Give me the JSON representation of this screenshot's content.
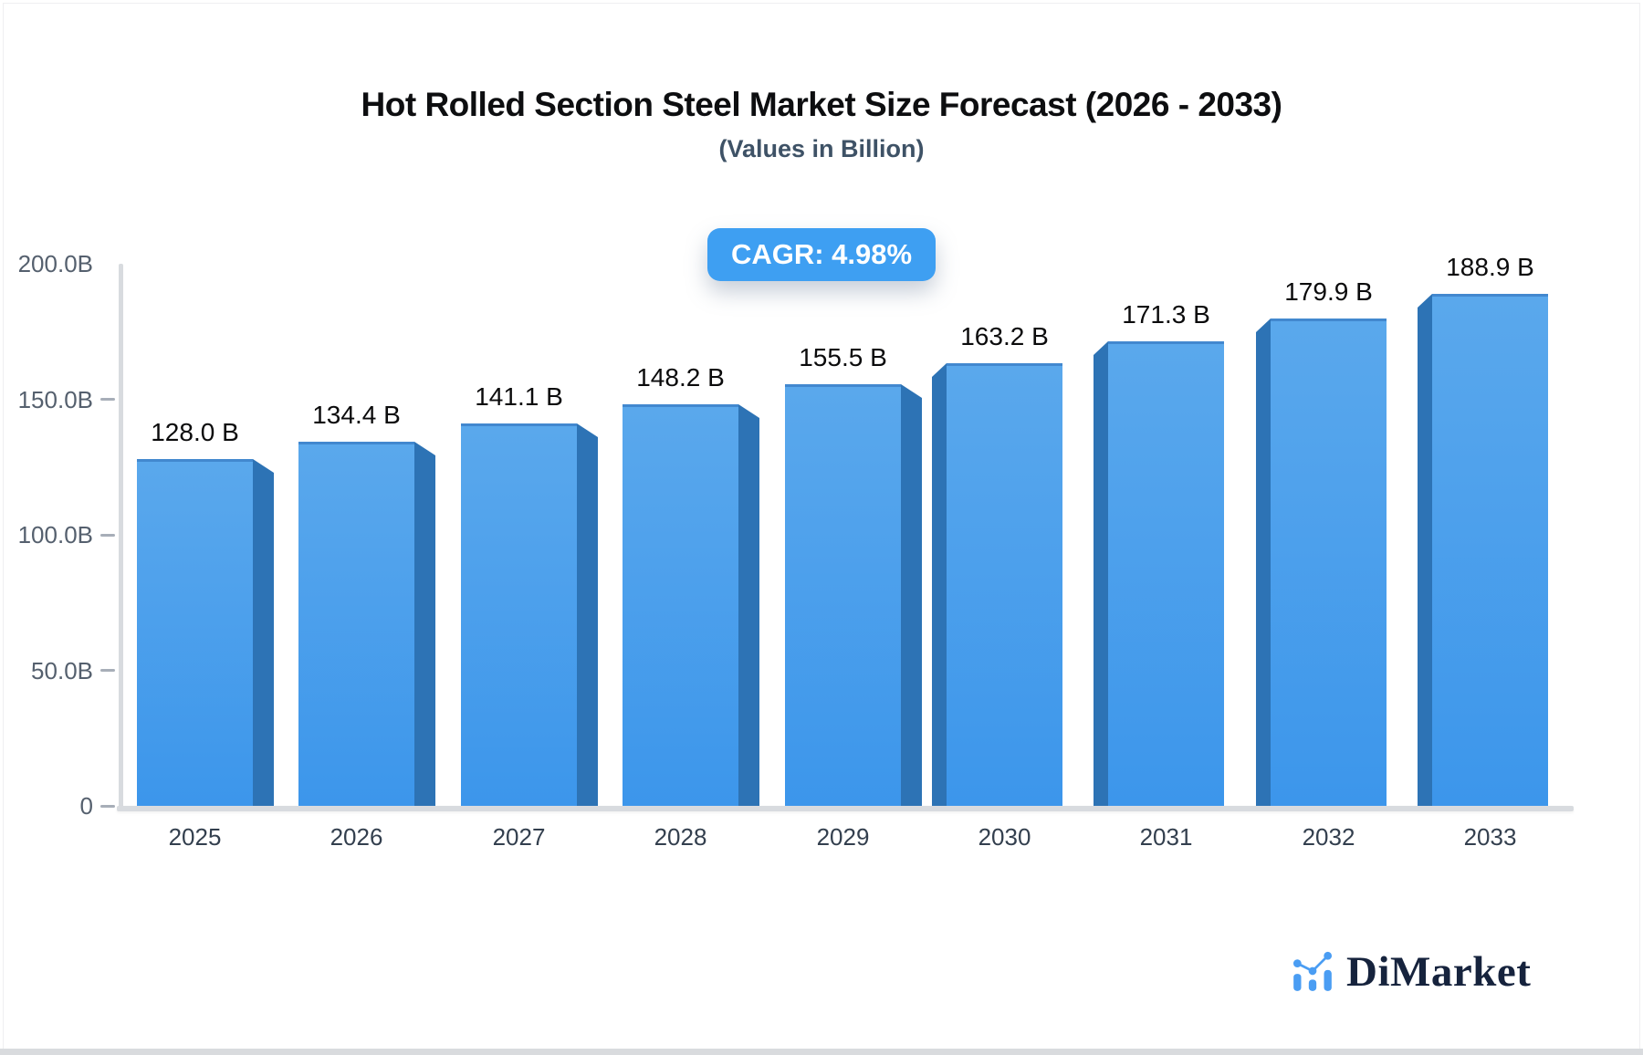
{
  "chart_data": {
    "type": "bar",
    "title": "Hot Rolled Section Steel Market Size Forecast (2026 - 2033)",
    "subtitle": "(Values in Billion)",
    "cagr_badge": "CAGR: 4.98%",
    "categories": [
      "2025",
      "2026",
      "2027",
      "2028",
      "2029",
      "2030",
      "2031",
      "2032",
      "2033"
    ],
    "values": [
      128.0,
      134.4,
      141.1,
      148.2,
      155.5,
      163.2,
      171.3,
      179.9,
      188.9
    ],
    "bar_labels": [
      "128.0 B",
      "134.4 B",
      "141.1 B",
      "148.2 B",
      "155.5 B",
      "163.2 B",
      "171.3 B",
      "179.9 B",
      "188.9 B"
    ],
    "unit": "Billion",
    "ylim": [
      0,
      200
    ],
    "y_ticks": [
      {
        "label": "200.0B",
        "value": 200
      },
      {
        "label": "150.0B",
        "value": 150
      },
      {
        "label": "100.0B",
        "value": 100
      },
      {
        "label": "50.0B",
        "value": 50
      },
      {
        "label": "0",
        "value": 0
      }
    ],
    "grid": false,
    "legend": false,
    "bar_style": "3d-extruded"
  },
  "branding": {
    "logo_text": "DiMarket",
    "logo_icon": "mini-bar-chart-icon"
  },
  "colors": {
    "title_text": "#0d0e10",
    "subtitle_text": "#3e5266",
    "badge_bg": "#3e9ff2",
    "bar_face_top": "#5aa8ec",
    "bar_face_bottom": "#3c96eb",
    "bar_side": "#2d73b5",
    "bar_top_edge": "#4288cf",
    "axis_line": "#d8dbdf",
    "tick_dash": "#a7aeb8",
    "tick_text": "#55606e",
    "year_text": "#333f4e",
    "label_text": "#0b0b0c",
    "logo_blue": "#4a9df3",
    "logo_navy": "#16233d"
  }
}
